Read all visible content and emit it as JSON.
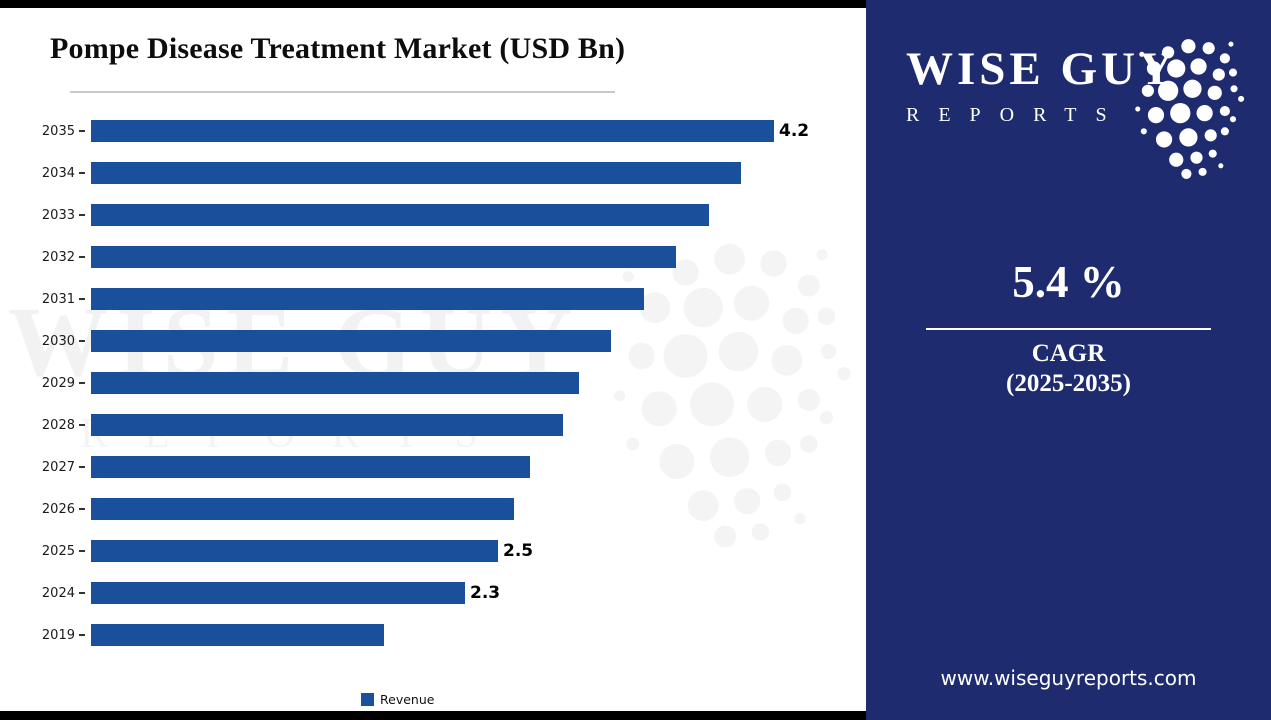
{
  "title": "Pompe Disease Treatment Market (USD Bn)",
  "chart_data": {
    "type": "bar",
    "orientation": "horizontal",
    "title": "Pompe Disease Treatment Market (USD Bn)",
    "categories": [
      "2035",
      "2034",
      "2033",
      "2032",
      "2031",
      "2030",
      "2029",
      "2028",
      "2027",
      "2026",
      "2025",
      "2024",
      "2019"
    ],
    "values": [
      4.2,
      4.0,
      3.8,
      3.6,
      3.4,
      3.2,
      3.0,
      2.9,
      2.7,
      2.6,
      2.5,
      2.3,
      1.8
    ],
    "data_labels": [
      "4.2",
      "",
      "",
      "",
      "",
      "",
      "",
      "",
      "",
      "",
      "2.5",
      "2.3",
      ""
    ],
    "xlim": [
      0,
      4.6
    ],
    "bar_color": "#1a4f9c",
    "grid": false,
    "legend_position": "bottom",
    "legend_labels": [
      "Revenue"
    ]
  },
  "legend": {
    "label": "Revenue"
  },
  "watermark": {
    "line1": "WISE GUY",
    "line2": "REPORTS"
  },
  "panel": {
    "bg_color": "#1e2b6e",
    "logo_line1": "WISE GUY",
    "logo_line2": "REPORTS",
    "cagr_value": "5.4 %",
    "cagr_label": "CAGR",
    "cagr_range": "(2025-2035)",
    "website": "www.wiseguyreports.com"
  }
}
